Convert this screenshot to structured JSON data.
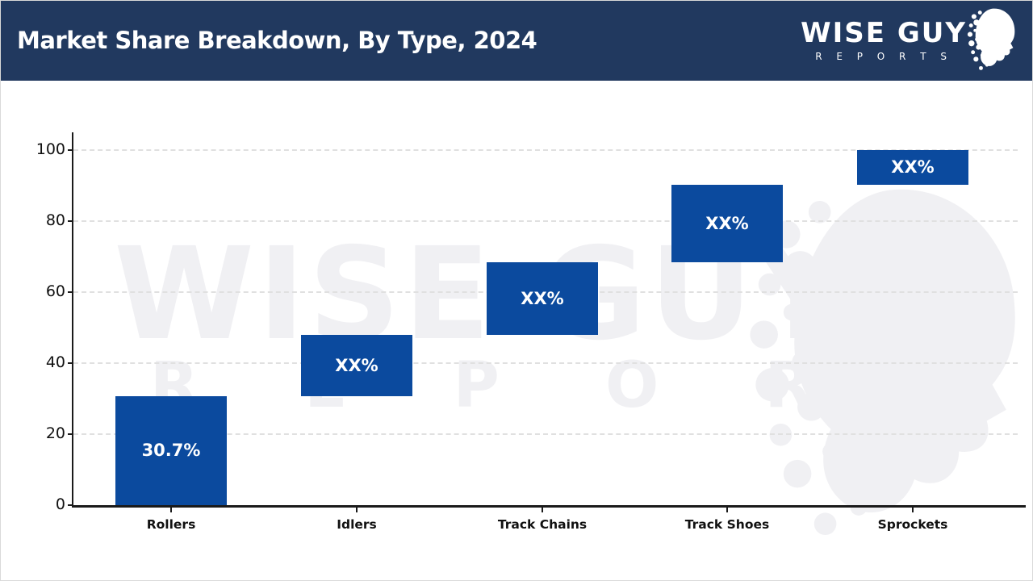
{
  "header": {
    "title": "Market Share Breakdown, By Type, 2024",
    "logo": {
      "primary": "WISE GUY",
      "secondary": "R E P O R T S",
      "head_icon": "dotted-face-profile"
    }
  },
  "watermark": {
    "primary": "WISE GUY",
    "secondary": "R E P O R T S",
    "head_icon": "dotted-face-profile"
  },
  "colors": {
    "header_bg": "#21395F",
    "bar": "#0B4A9E",
    "bar_label_text": "#ffffff",
    "axis": "#1a1a1a",
    "gridline": "#e0e0e0",
    "watermark": "#f0f0f3"
  },
  "chart_data": {
    "type": "bar",
    "subtype": "waterfall",
    "title": "Market Share Breakdown, By Type, 2024",
    "categories": [
      "Rollers",
      "Idlers",
      "Track Chains",
      "Track Shoes",
      "Sprockets"
    ],
    "segments": [
      {
        "category": "Rollers",
        "start": 0,
        "end": 30.7,
        "label": "30.7%"
      },
      {
        "category": "Idlers",
        "start": 30.7,
        "end": 48.0,
        "label": "XX%"
      },
      {
        "category": "Track Chains",
        "start": 48.0,
        "end": 68.5,
        "label": "XX%"
      },
      {
        "category": "Track Shoes",
        "start": 68.5,
        "end": 90.3,
        "label": "XX%"
      },
      {
        "category": "Sprockets",
        "start": 90.3,
        "end": 100,
        "label": "XX%"
      }
    ],
    "ylabel": "",
    "xlabel": "",
    "ylim": [
      0,
      100
    ],
    "yticks": [
      0,
      20,
      40,
      60,
      80,
      100
    ],
    "grid": "horizontal-dashed",
    "legend": null,
    "values_masked": true
  }
}
